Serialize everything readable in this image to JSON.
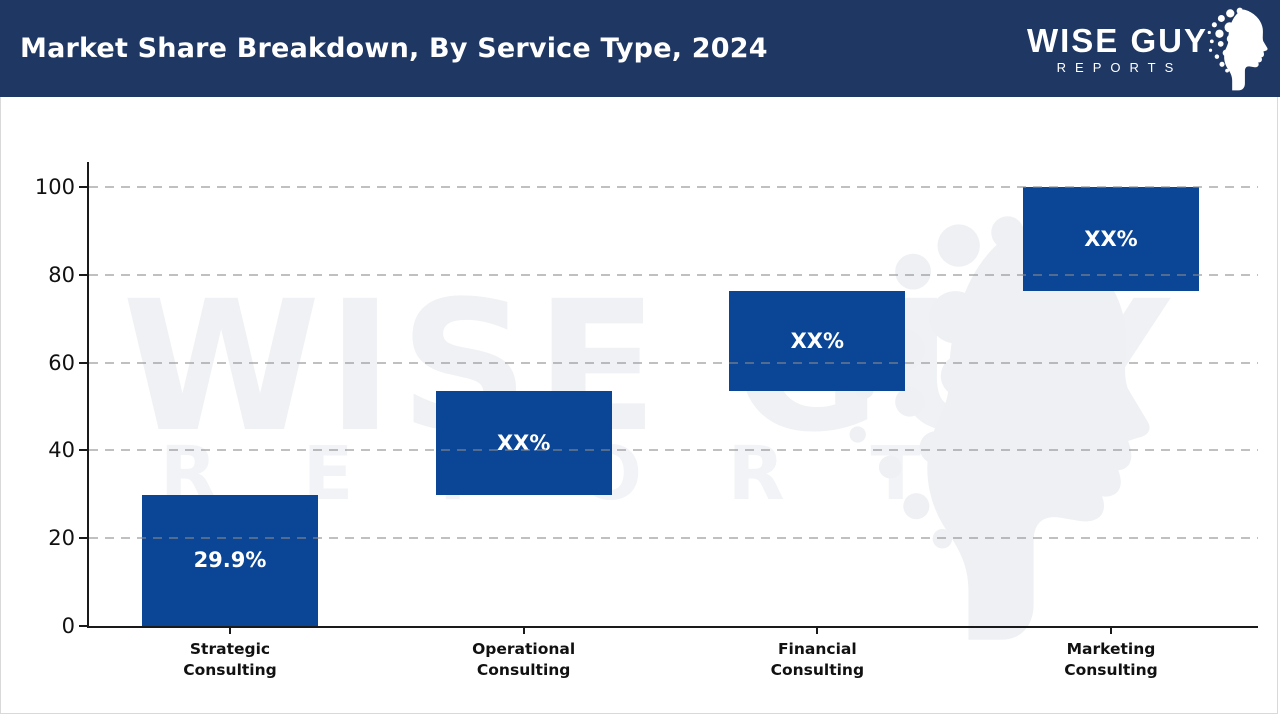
{
  "header": {
    "title": "Market Share Breakdown, By Service Type, 2024",
    "logo": {
      "line1": "WISE GUY",
      "line2": "REPORTS",
      "icon": "dotted-head-profile"
    }
  },
  "watermark": {
    "line1": "WISE GUY",
    "line2": "R E P O R T S",
    "icon": "dotted-head-profile"
  },
  "chart_data": {
    "type": "bar",
    "subtype": "waterfall",
    "title": "Market Share Breakdown, By Service Type, 2024",
    "categories": [
      "Strategic Consulting",
      "Operational Consulting",
      "Financial Consulting",
      "Marketing Consulting"
    ],
    "category_lines": [
      [
        "Strategic",
        "Consulting"
      ],
      [
        "Operational",
        "Consulting"
      ],
      [
        "Financial",
        "Consulting"
      ],
      [
        "Marketing",
        "Consulting"
      ]
    ],
    "segments": [
      {
        "start": 0,
        "end": 29.9,
        "label": "29.9%"
      },
      {
        "start": 29.9,
        "end": 53.5,
        "label": "XX%"
      },
      {
        "start": 53.5,
        "end": 76.3,
        "label": "XX%"
      },
      {
        "start": 76.3,
        "end": 100,
        "label": "XX%"
      }
    ],
    "yticks": [
      0,
      20,
      40,
      60,
      80,
      100
    ],
    "ylim": [
      0,
      105
    ],
    "xlabel": "",
    "ylabel": "",
    "grid": "horizontal-dashed, drawn over bars",
    "legend": "none",
    "bar_color": "#0a4596",
    "bar_label_color": "#ffffff"
  },
  "colors": {
    "header_background": "#1f3763",
    "header_text": "#ffffff",
    "bar": "#0a4596",
    "axis": "#1a1a1a",
    "gridline": "#c9c9c9",
    "watermark": "#eff1f4",
    "canvas_border": "#d9d9d9",
    "background": "#ffffff"
  }
}
